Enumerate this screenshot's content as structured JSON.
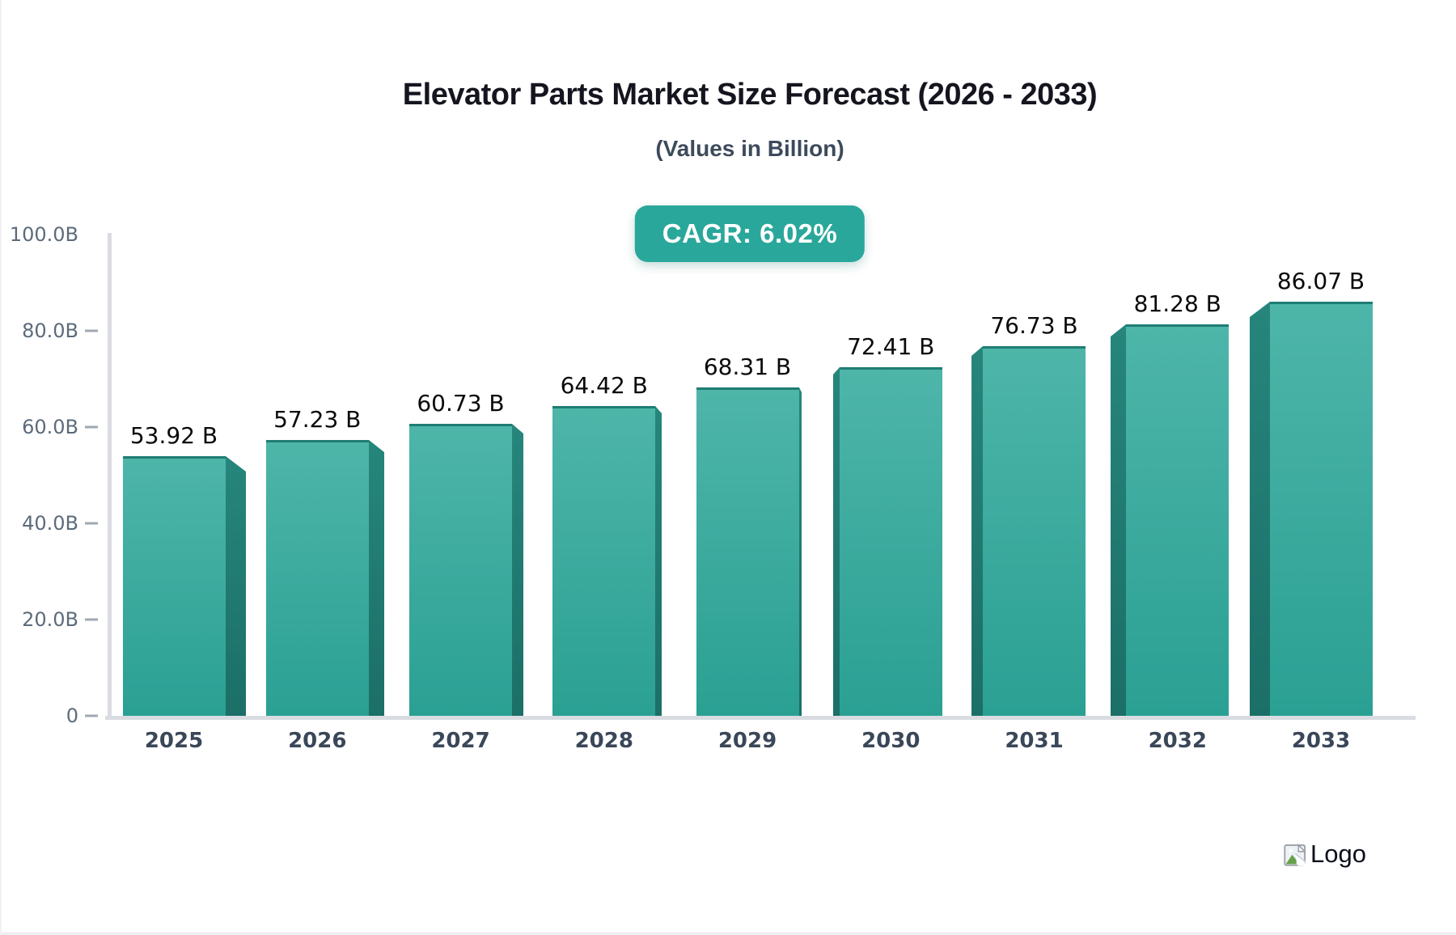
{
  "header": {
    "title": "Elevator Parts Market Size Forecast (2026 - 2033)",
    "subtitle": "(Values in Billion)",
    "badge": {
      "label": "CAGR: 6.02%",
      "color": "#2aa79b",
      "text_color": "#ffffff"
    }
  },
  "chart_data": {
    "type": "bar",
    "title": "Elevator Parts Market Size Forecast (2026 - 2033)",
    "subtitle": "(Values in Billion)",
    "cagr_label": "CAGR: 6.02%",
    "categories": [
      "2025",
      "2026",
      "2027",
      "2028",
      "2029",
      "2030",
      "2031",
      "2032",
      "2033"
    ],
    "values": [
      53.92,
      57.23,
      60.73,
      64.42,
      68.31,
      72.41,
      76.73,
      81.28,
      86.07
    ],
    "value_labels": [
      "53.92 B",
      "57.23 B",
      "60.73 B",
      "64.42 B",
      "68.31 B",
      "72.41 B",
      "76.73 B",
      "81.28 B",
      "86.07 B"
    ],
    "unit": "Billion",
    "ylim": [
      0,
      100
    ],
    "yticks": [
      {
        "label": "100.0B",
        "value": 100
      },
      {
        "label": "80.0B",
        "value": 80
      },
      {
        "label": "60.0B",
        "value": 60
      },
      {
        "label": "40.0B",
        "value": 40
      },
      {
        "label": "20.0B",
        "value": 20
      },
      {
        "label": "0",
        "value": 0
      }
    ],
    "xlabel": "",
    "ylabel": "",
    "grid": false,
    "legend": false,
    "bar_style": "3d-perspective-center-vanishing",
    "colors": {
      "bar_face_top": "#4eb5a9",
      "bar_face_bottom": "#2aa093",
      "bar_side_top": "#26867c",
      "bar_side_bottom": "#1b6f67",
      "bar_top_edge": "#1f7d74",
      "axis_line": "#d9dce1",
      "tick_dash": "#9fa8b2",
      "ytick_label_color": "#5d6b7a",
      "xtick_label_color": "#3a4759",
      "value_label_color": "#0a0a0c"
    }
  },
  "footer": {
    "logo_text": "Logo"
  }
}
